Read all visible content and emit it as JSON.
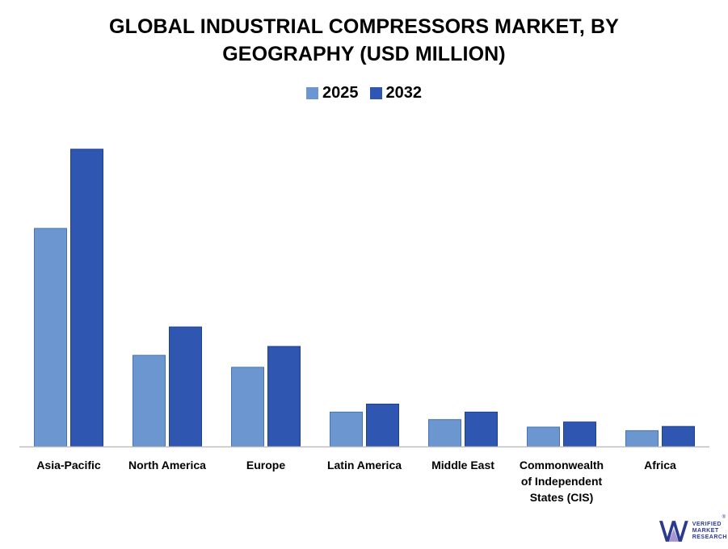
{
  "chart_data": {
    "type": "bar",
    "title_lines": [
      "GLOBAL INDUSTRIAL COMPRESSORS MARKET, BY",
      "GEOGRAPHY (USD MILLION)"
    ],
    "categories": [
      [
        "Asia-Pacific"
      ],
      [
        "North America"
      ],
      [
        "Europe"
      ],
      [
        "Latin America"
      ],
      [
        "Middle East"
      ],
      [
        "Commonwealth",
        "of Independent",
        "States (CIS)"
      ],
      [
        "Africa"
      ]
    ],
    "series": [
      {
        "name": "2025",
        "color": "#6b96cf",
        "values": [
          73,
          30.5,
          26.5,
          11.5,
          9,
          6.5,
          5.3
        ]
      },
      {
        "name": "2032",
        "color": "#2f56b0",
        "values": [
          99.5,
          40,
          33.5,
          14.2,
          11.5,
          8.2,
          6.7
        ]
      }
    ],
    "ylim": [
      0,
      100
    ],
    "grid": false,
    "legend_position": "top-center",
    "xlabel": "",
    "ylabel": ""
  },
  "branding": {
    "logo_icon": "vmr-logo-icon",
    "logo_lines": [
      "VERIFIED",
      "MARKET",
      "RESEARCH"
    ],
    "registered": "®"
  }
}
